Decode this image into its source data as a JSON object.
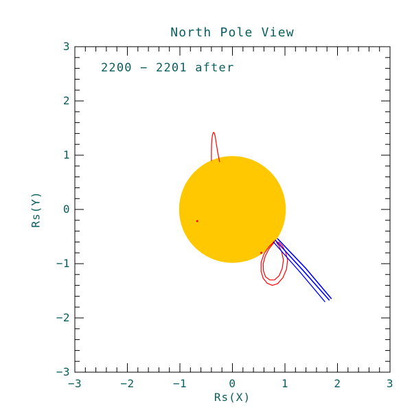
{
  "window": {
    "background": "#FFFFFF"
  },
  "chart_data": {
    "type": "line",
    "title": "North Pole View",
    "annotation": "2200 − 2201 after",
    "xlabel": "Rs(X)",
    "ylabel": "Rs(Y)",
    "xlim": [
      -3,
      3
    ],
    "ylim": [
      -3,
      3
    ],
    "xticks": [
      -3,
      -2,
      -1,
      0,
      1,
      2,
      3
    ],
    "yticks": [
      -3,
      -2,
      -1,
      0,
      1,
      2,
      3
    ],
    "xtick_labels": [
      "−3",
      "−2",
      "−1",
      "0",
      "1",
      "2",
      "3"
    ],
    "ytick_labels": [
      "−3",
      "−2",
      "−1",
      "0",
      "1",
      "2",
      "3"
    ],
    "minor_tick_step": 0.2,
    "grid": false,
    "legend": "none",
    "frame_color": "#000000",
    "text_color": "#0B5E5E",
    "sun": {
      "center_x": 0,
      "center_y": 0,
      "radius": 1,
      "fill": "#FFC800"
    },
    "markers": [
      {
        "x": -0.67,
        "y": -0.215,
        "color": "#FF0000"
      },
      {
        "x": 0.55,
        "y": -0.8,
        "color": "#FF0000"
      }
    ],
    "series": [
      {
        "name": "field-line-red-north-loop",
        "color": "#FF0000",
        "width": 1.2,
        "points": [
          [
            -0.4,
            0.9
          ],
          [
            -0.4,
            1.06
          ],
          [
            -0.397,
            1.2
          ],
          [
            -0.39,
            1.3
          ],
          [
            -0.378,
            1.38
          ],
          [
            -0.362,
            1.42
          ],
          [
            -0.348,
            1.415
          ],
          [
            -0.33,
            1.35
          ],
          [
            -0.31,
            1.23
          ],
          [
            -0.285,
            1.08
          ],
          [
            -0.258,
            0.94
          ],
          [
            -0.243,
            0.88
          ]
        ]
      },
      {
        "name": "field-line-red-outer-loop",
        "color": "#FF0000",
        "width": 1.2,
        "points": [
          [
            0.82,
            -0.57
          ],
          [
            0.7,
            -0.68
          ],
          [
            0.6,
            -0.82
          ],
          [
            0.545,
            -0.98
          ],
          [
            0.545,
            -1.14
          ],
          [
            0.585,
            -1.27
          ],
          [
            0.66,
            -1.36
          ],
          [
            0.76,
            -1.4
          ],
          [
            0.86,
            -1.37
          ],
          [
            0.96,
            -1.26
          ],
          [
            1.03,
            -1.1
          ],
          [
            1.05,
            -0.93
          ],
          [
            1.01,
            -0.78
          ],
          [
            0.95,
            -0.67
          ],
          [
            0.88,
            -0.6
          ]
        ]
      },
      {
        "name": "field-line-red-inner-loop",
        "color": "#FF0000",
        "width": 1.2,
        "points": [
          [
            0.8,
            -0.6
          ],
          [
            0.7,
            -0.72
          ],
          [
            0.625,
            -0.86
          ],
          [
            0.585,
            -1.0
          ],
          [
            0.59,
            -1.13
          ],
          [
            0.63,
            -1.24
          ],
          [
            0.71,
            -1.3
          ],
          [
            0.8,
            -1.3
          ],
          [
            0.89,
            -1.22
          ],
          [
            0.95,
            -1.08
          ],
          [
            0.97,
            -0.93
          ],
          [
            0.94,
            -0.79
          ],
          [
            0.89,
            -0.68
          ],
          [
            0.84,
            -0.61
          ]
        ]
      },
      {
        "name": "streamline-blue-1",
        "color": "#0000FF",
        "width": 1.6,
        "points": [
          [
            0.86,
            -0.54
          ],
          [
            1.4,
            -1.09
          ],
          [
            1.88,
            -1.64
          ]
        ]
      },
      {
        "name": "streamline-blue-2",
        "color": "#0000FF",
        "width": 1.6,
        "points": [
          [
            0.82,
            -0.57
          ],
          [
            1.35,
            -1.13
          ],
          [
            1.84,
            -1.67
          ]
        ]
      },
      {
        "name": "streamline-blue-3",
        "color": "#0000FF",
        "width": 1.3,
        "points": [
          [
            0.78,
            -0.6
          ],
          [
            1.29,
            -1.16
          ],
          [
            1.76,
            -1.7
          ]
        ]
      }
    ]
  }
}
